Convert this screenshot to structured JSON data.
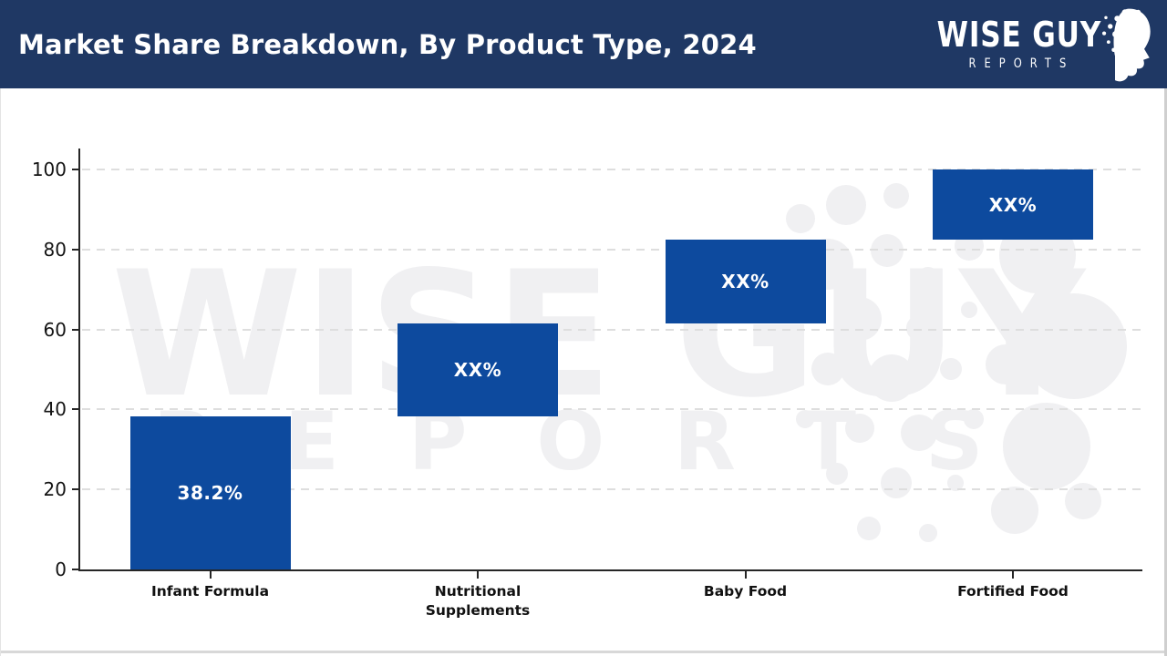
{
  "header": {
    "bg_color": "#1f3864",
    "title": "Market Share Breakdown, By Product Type, 2024",
    "logo": {
      "wordmark": "WISE GUY",
      "subtitle": "REPORTS",
      "icon": "dotted-face-icon"
    }
  },
  "watermark": {
    "wordmark": "WISE GUY",
    "subtitle": "REPORTS"
  },
  "chart_data": {
    "type": "bar",
    "subtype": "waterfall",
    "title": "Market Share Breakdown, By Product Type, 2024",
    "xlabel": "",
    "ylabel": "",
    "ylim": [
      0,
      100
    ],
    "yticks": [
      0,
      20,
      40,
      60,
      80,
      100
    ],
    "grid": "horizontal-dashed",
    "legend": "none",
    "bar_color": "#0d4a9e",
    "bar_label_color": "#ffffff",
    "axis_color": "#262626",
    "categories": [
      "Infant Formula",
      "Nutritional Supplements",
      "Baby Food",
      "Fortified Food"
    ],
    "segments": [
      {
        "category": "Infant Formula",
        "start": 0,
        "end": 38.2,
        "label": "38.2%"
      },
      {
        "category": "Nutritional Supplements",
        "start": 38.2,
        "end": 61.6,
        "label": "XX%"
      },
      {
        "category": "Baby Food",
        "start": 61.6,
        "end": 82.4,
        "label": "XX%"
      },
      {
        "category": "Fortified Food",
        "start": 82.4,
        "end": 100,
        "label": "XX%"
      }
    ]
  }
}
